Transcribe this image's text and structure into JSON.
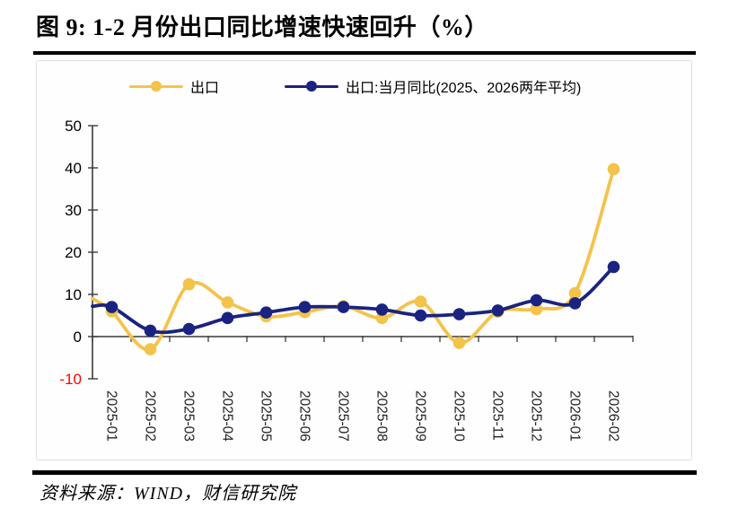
{
  "header": {
    "title": "图 9:  1-2 月份出口同比增速快速回升（%）"
  },
  "chart_data": {
    "type": "line",
    "title": "图 9: 1-2 月份出口同比增速快速回升（%）",
    "categories": [
      "2025-01",
      "2025-02",
      "2025-03",
      "2025-04",
      "2025-05",
      "2025-06",
      "2025-07",
      "2025-08",
      "2025-09",
      "2025-10",
      "2025-11",
      "2025-12",
      "2026-01",
      "2026-02"
    ],
    "series": [
      {
        "name": "出口",
        "color": "#F3C34A",
        "values": [
          6.0,
          -3.0,
          12.4,
          8.1,
          4.8,
          5.8,
          7.2,
          4.4,
          8.3,
          -1.5,
          5.9,
          6.5,
          10.3,
          39.7
        ],
        "edge_left": 9.0
      },
      {
        "name": "出口:当月同比(2025、2026两年平均)",
        "color": "#1A2380",
        "values": [
          7.0,
          1.4,
          1.8,
          4.4,
          5.7,
          7.0,
          7.0,
          6.4,
          5.0,
          5.3,
          6.2,
          8.6,
          7.9,
          16.5
        ],
        "edge_left": 7.2
      }
    ],
    "ylim": [
      -10,
      50
    ],
    "y_ticks": [
      {
        "label": "50",
        "value": 50,
        "color": "#000000"
      },
      {
        "label": "40",
        "value": 40,
        "color": "#000000"
      },
      {
        "label": "30",
        "value": 30,
        "color": "#000000"
      },
      {
        "label": "20",
        "value": 20,
        "color": "#000000"
      },
      {
        "label": "10",
        "value": 10,
        "color": "#000000"
      },
      {
        "label": "0",
        "value": 0,
        "color": "#000000"
      },
      {
        "label": "-10",
        "value": -10,
        "color": "#FF0000"
      }
    ],
    "grid": false,
    "smoothed": true,
    "legend_position": "top",
    "xlabel": "",
    "ylabel": ""
  },
  "footer": {
    "source": "资料来源：WIND，财信研究院"
  }
}
